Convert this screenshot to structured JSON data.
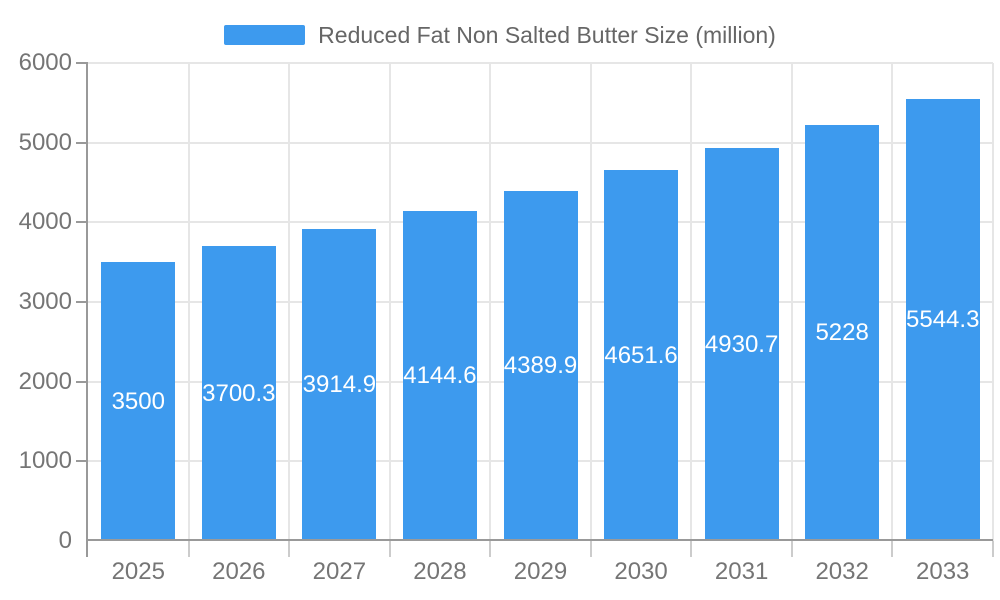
{
  "legend": {
    "items": [
      {
        "label": "Reduced Fat Non Salted Butter Size (million)"
      }
    ]
  },
  "colors": {
    "bar": "#3D9AEE",
    "grid": "#E6E6E6",
    "axis": "#999999",
    "x_tick": "#CCCCCC",
    "tick_label": "#757575",
    "legend_text": "#666666",
    "bar_label": "#FFFFFF",
    "background": "#FFFFFF"
  },
  "chart_data": {
    "type": "bar",
    "title": "",
    "series_name": "Reduced Fat Non Salted Butter Size (million)",
    "categories": [
      "2025",
      "2026",
      "2027",
      "2028",
      "2029",
      "2030",
      "2031",
      "2032",
      "2033"
    ],
    "values": [
      3500,
      3700.3,
      3914.9,
      4144.6,
      4389.9,
      4651.6,
      4930.7,
      5228,
      5544.3
    ],
    "xlabel": "",
    "ylabel": "",
    "ylim": [
      0,
      6000
    ],
    "yticks": [
      0,
      1000,
      2000,
      3000,
      4000,
      5000,
      6000
    ],
    "grid": true,
    "legend_position": "top-center",
    "bar_labels": "inside-center"
  }
}
